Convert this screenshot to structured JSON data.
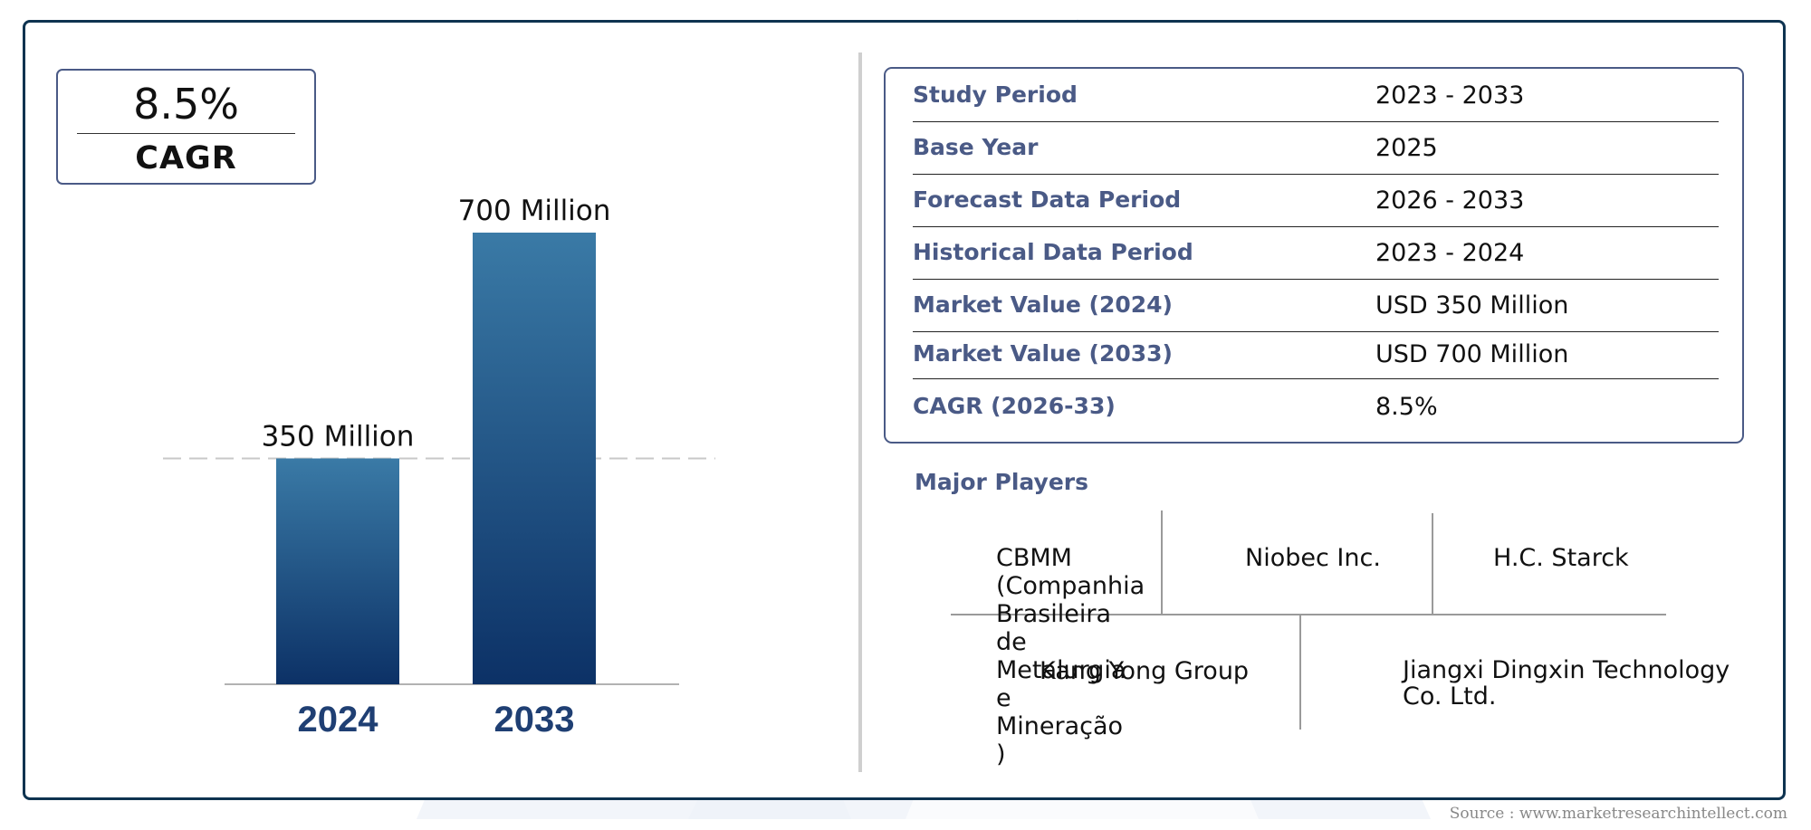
{
  "cagr": {
    "value": "8.5%",
    "label": "CAGR"
  },
  "chart_data": {
    "type": "bar",
    "categories": [
      "2024",
      "2033"
    ],
    "values": [
      350,
      700
    ],
    "value_labels": [
      "350 Million",
      "700 Million"
    ],
    "unit": "Million",
    "ylim": [
      0,
      700
    ],
    "grid": false,
    "reference_line": "dashed at 2024 value",
    "bar_color_top": "#3a7aa6",
    "bar_color_bottom": "#0c3166",
    "category_label_color": "#1f3f73"
  },
  "info_table": [
    {
      "label": "Study Period",
      "value": "2023 - 2033"
    },
    {
      "label": "Base Year",
      "value": "2025"
    },
    {
      "label": "Forecast Data Period",
      "value": "2026 - 2033"
    },
    {
      "label": "Historical Data Period",
      "value": "2023 - 2024"
    },
    {
      "label": "Market Value (2024)",
      "value": "USD 350 Million"
    },
    {
      "label": "Market Value (2033)",
      "value": "USD 700 Million"
    },
    {
      "label": "CAGR (2026-33)",
      "value": "8.5%"
    }
  ],
  "players": {
    "title": "Major Players",
    "names": [
      "CBMM\n(Companhia\nBrasileira\nde\nMetalurgia\ne\nMineração\n)",
      "Niobec Inc.",
      "H.C. Starck",
      "Kang Yong Group",
      "Jiangxi Dingxin Technology\nCo. Ltd."
    ]
  },
  "source": "Source : www.marketresearchintellect.com",
  "colors": {
    "accent": "#4a5a86",
    "frame": "#0e3350",
    "watermark": "#eef2f8"
  }
}
